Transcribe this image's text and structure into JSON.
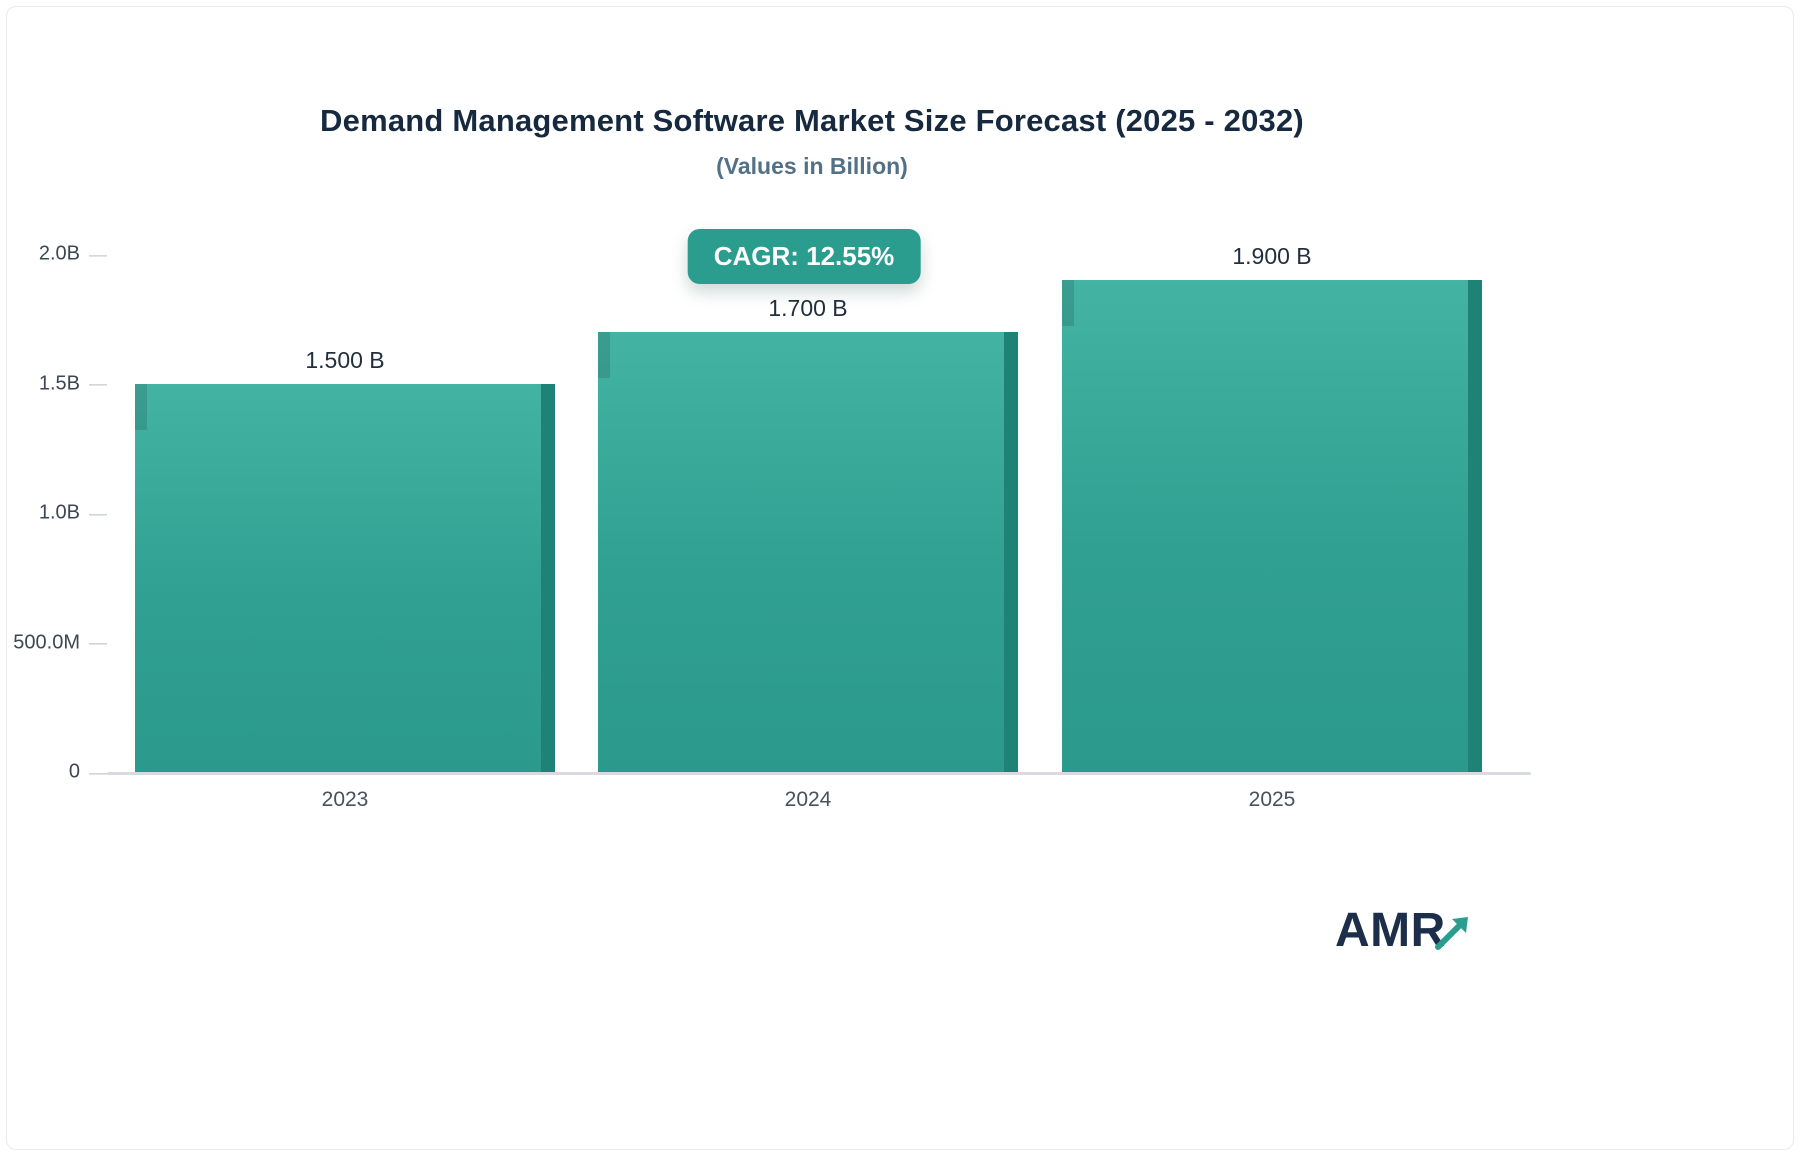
{
  "title": "Demand Management Software Market Size Forecast (2025 - 2032)",
  "subtitle": "(Values in Billion)",
  "badge": {
    "label": "CAGR: 12.55%"
  },
  "y_axis": {
    "ticks": [
      "2.0B",
      "1.5B",
      "1.0B",
      "500.0M",
      "0"
    ]
  },
  "chart_data": {
    "type": "bar",
    "categories": [
      "2023",
      "2024",
      "2025"
    ],
    "values": [
      1.5,
      1.7,
      1.9
    ],
    "value_labels": [
      "1.500 B",
      "1.700 B",
      "1.900 B"
    ],
    "title": "Demand Management Software Market Size Forecast (2025 - 2032)",
    "subtitle": "(Values in Billion)",
    "xlabel": "",
    "ylabel": "",
    "ylim": [
      0,
      2.0
    ],
    "y_tick_labels": [
      "0",
      "500.0M",
      "1.0B",
      "1.5B",
      "2.0B"
    ],
    "unit": "Billion",
    "annotations": [
      "CAGR: 12.55%"
    ],
    "legend": "none",
    "grid": "off"
  },
  "colors": {
    "bar_top": "#43b3a4",
    "bar_bottom": "#2b9a8c",
    "bar_side": "#1f8276",
    "badge_bg": "#2a9d8f",
    "title_text": "#16293f",
    "subtitle_text": "#527086",
    "axis_text": "#3b4754",
    "logo_text": "#1c2e4a",
    "logo_arrow": "#2a9d8f"
  },
  "logo": {
    "text": "AMR"
  }
}
